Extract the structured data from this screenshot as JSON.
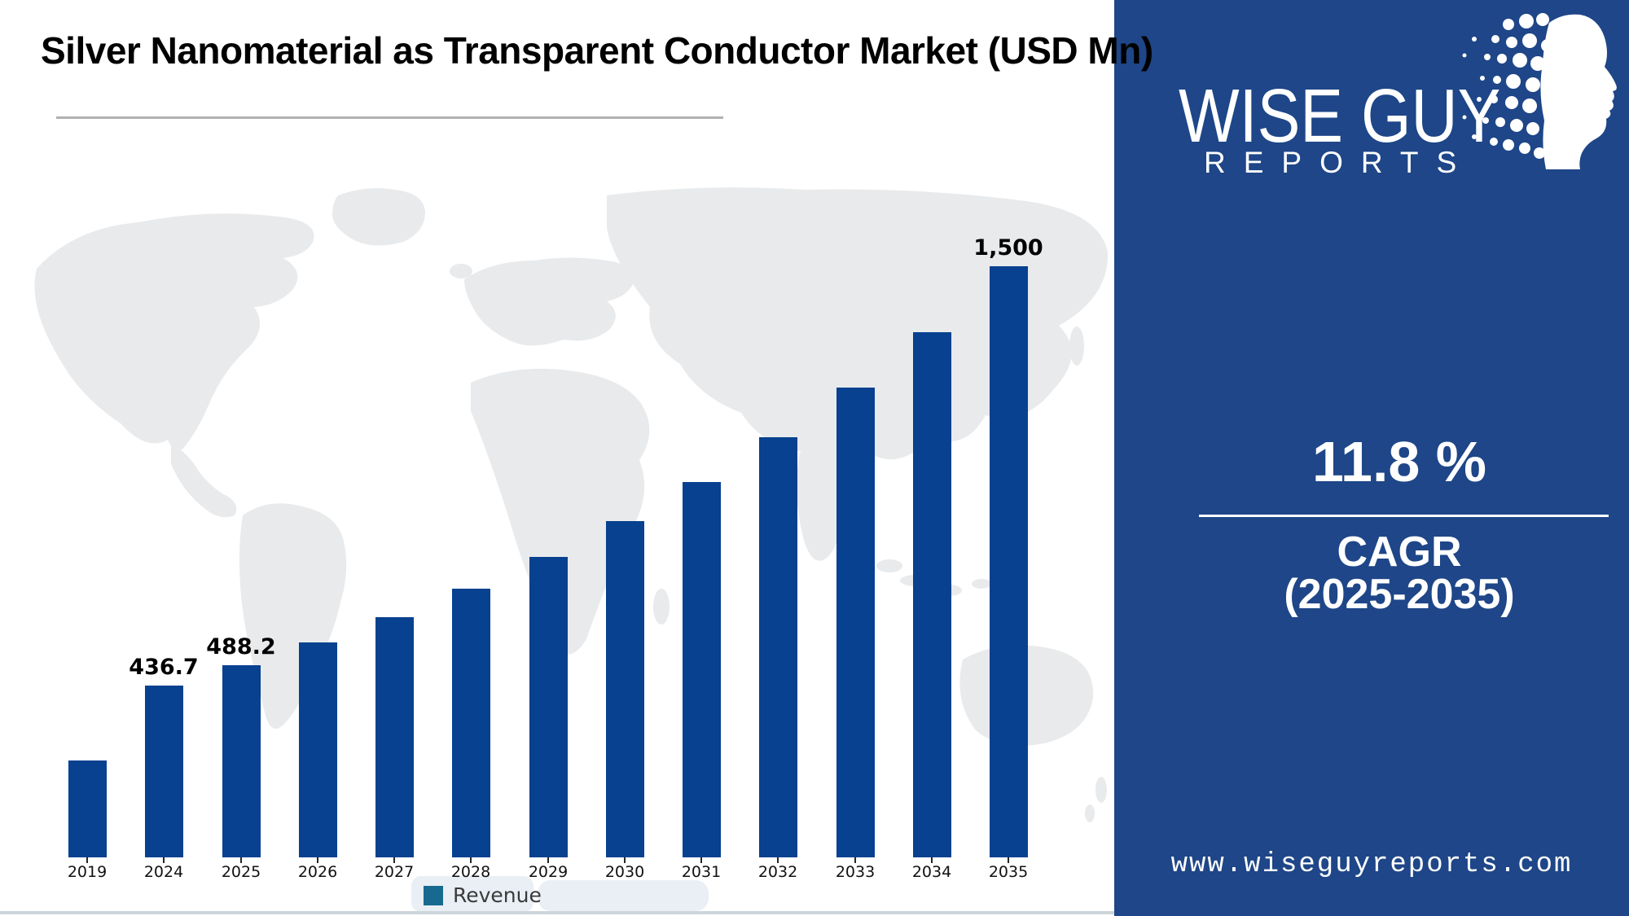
{
  "title": "Silver Nanomaterial as Transparent Conductor Market (USD Mn)",
  "chart_data": {
    "type": "bar",
    "title": "Silver Nanomaterial as Transparent Conductor Market (USD Mn)",
    "categories": [
      "2019",
      "2024",
      "2025",
      "2026",
      "2027",
      "2028",
      "2029",
      "2030",
      "2031",
      "2032",
      "2033",
      "2034",
      "2035"
    ],
    "values": [
      246,
      436.7,
      488.2,
      545.8,
      610.2,
      682.2,
      762.7,
      852.7,
      953.3,
      1065.8,
      1191.6,
      1332.2,
      1500
    ],
    "value_labels": [
      "",
      "436.7",
      "488.2",
      "",
      "",
      "",
      "",
      "",
      "",
      "",
      "",
      "",
      "1,500"
    ],
    "xlabel": "",
    "ylabel": "",
    "ylim": [
      0,
      1550
    ],
    "grid": false,
    "bar_color": "#07418f",
    "legend_position": "bottom",
    "legend_label": "Revenue",
    "legend_color": "#17698f"
  },
  "sidebar": {
    "background": "#1e4688",
    "logo_line1": "WISE GUY",
    "logo_line2": "REPORTS",
    "stat_value": "11.8 %",
    "stat_label_line1": "CAGR",
    "stat_label_line2": "(2025-2035)",
    "website": "www.wiseguyreports.com"
  }
}
